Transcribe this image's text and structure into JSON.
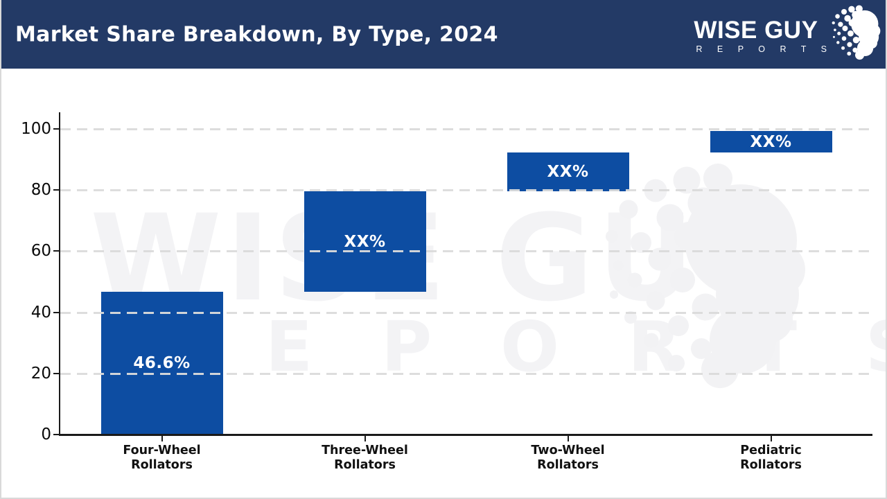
{
  "header": {
    "title": "Market Share Breakdown, By Type, 2024",
    "background_color": "#233a66",
    "logo": {
      "wordmark": "WISE GUY",
      "subtext": "R E P O R T S"
    }
  },
  "watermark": {
    "line1": "WISE GUY",
    "line2": "R E P O R T S"
  },
  "chart_data": {
    "type": "bar",
    "subtype": "waterfall",
    "title": "Market Share Breakdown, By Type, 2024",
    "categories": [
      "Four-Wheel\nRollators",
      "Three-Wheel\nRollators",
      "Two-Wheel\nRollators",
      "Pediatric\nRollators"
    ],
    "series": [
      {
        "name": "Market share (%)",
        "segments": [
          {
            "category": "Four-Wheel Rollators",
            "start": 0,
            "end": 46.6,
            "label": "46.6%"
          },
          {
            "category": "Three-Wheel Rollators",
            "start": 46.6,
            "end": 79.5,
            "label": "XX%"
          },
          {
            "category": "Two-Wheel Rollators",
            "start": 79.5,
            "end": 92.2,
            "label": "XX%"
          },
          {
            "category": "Pediatric Rollators",
            "start": 92.2,
            "end": 99.4,
            "label": "XX%"
          }
        ]
      }
    ],
    "ylim": [
      0,
      100
    ],
    "yticks": [
      0,
      20,
      40,
      60,
      80,
      100
    ],
    "grid": {
      "horizontal": true,
      "style": "dashed",
      "color": "#dbdbdb"
    },
    "bar_color": "#0d4da2",
    "bar_label_color": "#ffffff",
    "axis_color": "#1a1a1a",
    "legend": "none"
  }
}
